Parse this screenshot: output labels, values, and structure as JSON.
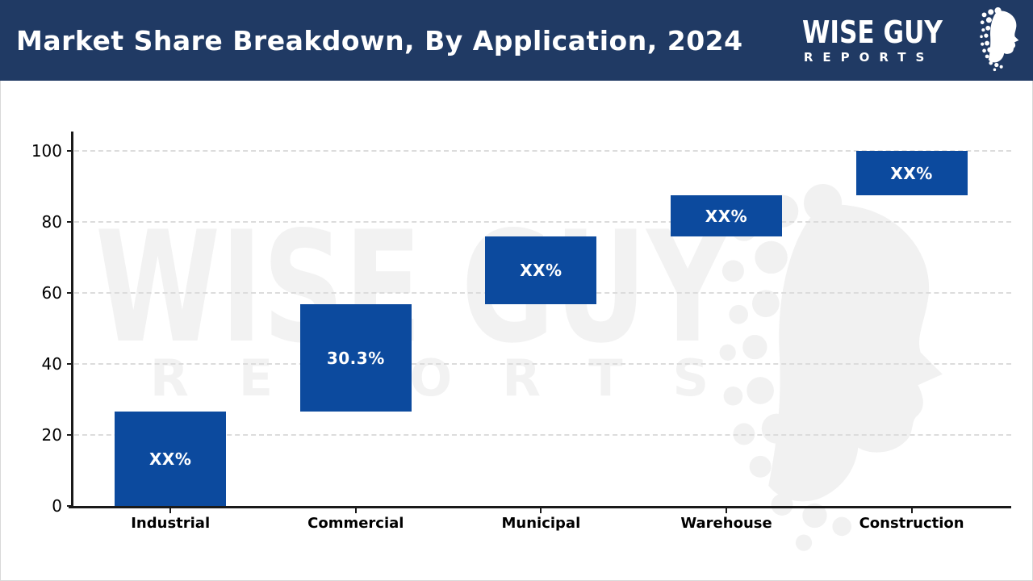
{
  "header": {
    "title": "Market Share Breakdown, By Application, 2024",
    "logo": {
      "line1": "WISE GUY",
      "line2": "REPORTS"
    }
  },
  "watermark": {
    "line1": "WISE GUY",
    "line2": "REPORTS"
  },
  "colors": {
    "header_bg": "#203A64",
    "bar_blue": "#0C4A9E",
    "bar_value_text": "#FFFFFF",
    "gridline": "#DCDCDC",
    "axis": "#1A1A1A",
    "watermark": "#F2F2F2"
  },
  "chart_data": {
    "type": "bar",
    "subtype": "waterfall-floating-bars",
    "title": "Market Share Breakdown, By Application, 2024",
    "xlabel": "",
    "ylabel": "",
    "ylim": [
      0,
      100
    ],
    "yticks": [
      0,
      20,
      40,
      60,
      80,
      100
    ],
    "grid": "horizontal-dashed",
    "legend": "none",
    "categories": [
      "Industrial",
      "Commercial",
      "Municipal",
      "Warehouse",
      "Construction"
    ],
    "bars": [
      {
        "category": "Industrial",
        "start": 0,
        "end": 26.5,
        "height": 26.5,
        "label": "XX%"
      },
      {
        "category": "Commercial",
        "start": 26.5,
        "end": 56.8,
        "height": 30.3,
        "label": "30.3%"
      },
      {
        "category": "Municipal",
        "start": 56.8,
        "end": 75.8,
        "height": 19.0,
        "label": "XX%"
      },
      {
        "category": "Warehouse",
        "start": 75.8,
        "end": 87.4,
        "height": 11.6,
        "label": "XX%"
      },
      {
        "category": "Construction",
        "start": 87.4,
        "end": 100,
        "height": 12.6,
        "label": "XX%"
      }
    ],
    "note": "Only Commercial shows a numeric value; other segments masked as XX%"
  }
}
